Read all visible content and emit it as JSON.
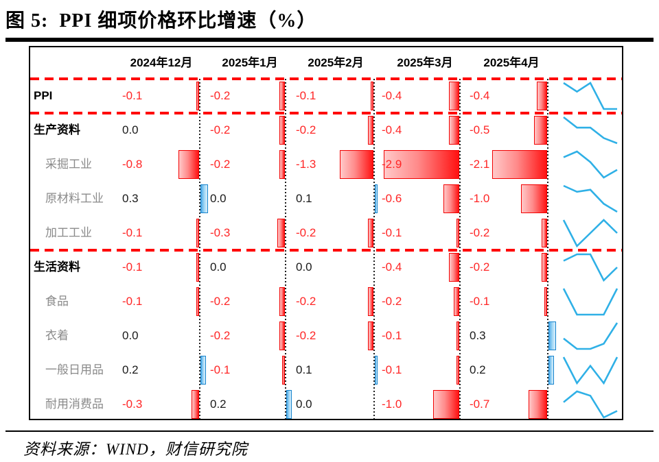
{
  "title": "图 5:  PPI 细项价格环比增速（%）",
  "source": "资料来源：WIND，财信研究院",
  "colors": {
    "negative_text": "#ff2626",
    "positive_text": "#1a1a1a",
    "negative_bar_border": "#f20000",
    "negative_bar_fill_dark": "#ff1212",
    "negative_bar_fill_light": "#ffc9c9",
    "positive_bar_border": "#1583cd",
    "positive_bar_fill_dark": "#4face9",
    "positive_bar_fill_light": "#d8effc",
    "separator_red": "#ff0000",
    "sparkline": "#2fb0e6",
    "sublabel_gray": "#8a8a8a"
  },
  "chart_data": {
    "type": "table",
    "title": "PPI 细项价格环比增速（%）",
    "value_unit": "%",
    "columns": [
      "2024年12月",
      "2025年1月",
      "2025年2月",
      "2025年3月",
      "2025年4月"
    ],
    "rows": [
      {
        "label": "PPI",
        "bold": true,
        "values": [
          "-0.1",
          "-0.2",
          "-0.1",
          "-0.4",
          "-0.4"
        ]
      },
      {
        "label": "生产资料",
        "bold": true,
        "values": [
          "0.0",
          "-0.2",
          "-0.2",
          "-0.4",
          "-0.5"
        ]
      },
      {
        "label": "采掘工业",
        "bold": false,
        "values": [
          "-0.8",
          "-0.2",
          "-1.3",
          "-2.9",
          "-2.1"
        ]
      },
      {
        "label": "原材料工业",
        "bold": false,
        "values": [
          "0.3",
          "0.0",
          "0.1",
          "-0.6",
          "-1.0"
        ]
      },
      {
        "label": "加工工业",
        "bold": false,
        "values": [
          "-0.1",
          "-0.3",
          "-0.2",
          "-0.1",
          "-0.2"
        ]
      },
      {
        "label": "生活资料",
        "bold": true,
        "values": [
          "-0.1",
          "0.0",
          "0.0",
          "-0.4",
          "-0.2"
        ]
      },
      {
        "label": "食品",
        "bold": false,
        "values": [
          "-0.1",
          "-0.2",
          "-0.2",
          "-0.2",
          "-0.1"
        ]
      },
      {
        "label": "衣着",
        "bold": false,
        "values": [
          "0.0",
          "-0.2",
          "-0.2",
          "-0.1",
          "0.3"
        ]
      },
      {
        "label": "一般日用品",
        "bold": false,
        "values": [
          "0.2",
          "-0.1",
          "0.1",
          "-0.1",
          "0.2"
        ]
      },
      {
        "label": "耐用消费品",
        "bold": false,
        "values": [
          "-0.3",
          "0.2",
          "0.0",
          "-1.0",
          "-0.7"
        ]
      }
    ],
    "group_separator_rows": [
      0,
      1,
      5
    ],
    "bar_style": "negative bars extend left of each column's dashed axis in red gradient; positive bars extend right in blue gradient",
    "sparkline": "per-row 5-point trend line of the monthly values, light blue, rightmost column",
    "legend_position": "none",
    "grid": "off"
  }
}
